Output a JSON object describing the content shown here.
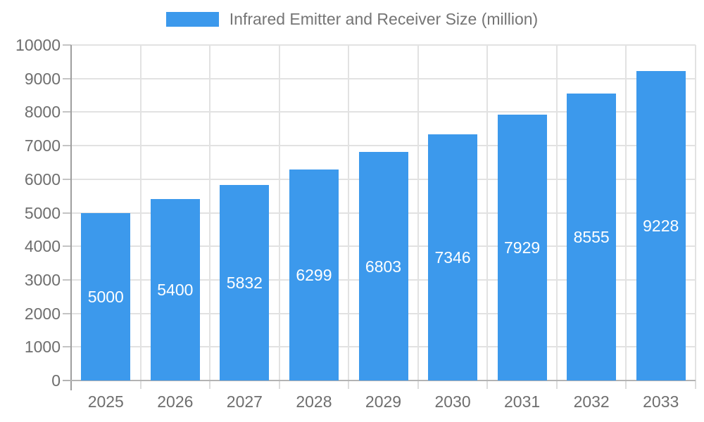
{
  "chart_data": {
    "type": "bar",
    "title": "",
    "xlabel": "",
    "ylabel": "",
    "series_label": "Infrared Emitter and Receiver Size (million)",
    "categories": [
      "2025",
      "2026",
      "2027",
      "2028",
      "2029",
      "2030",
      "2031",
      "2032",
      "2033"
    ],
    "values": [
      5000,
      5400,
      5832,
      6299,
      6803,
      7346,
      7929,
      8555,
      9228
    ],
    "value_labels": [
      "5000",
      "5400",
      "5832",
      "6299",
      "6803",
      "7346",
      "7929",
      "8555",
      "9228"
    ],
    "ylim": [
      0,
      10000
    ],
    "ytick_step": 1000,
    "ytick_labels": [
      "0",
      "1000",
      "2000",
      "3000",
      "4000",
      "5000",
      "6000",
      "7000",
      "8000",
      "9000",
      "10000"
    ],
    "grid": true,
    "legend_position": "top",
    "value_label_position": "inside-center"
  },
  "colors": {
    "bar": "#3C99EC",
    "grid": "#E2E2E2",
    "axis_line": "#9E9E9E",
    "axis_bottom_line": "#B3B3B3",
    "x_tick": "#DCDCDC",
    "y_tick": "#C4C4C4",
    "axis_text": "#6E6E6E",
    "legend_text": "#757575",
    "value_text": "#FFFFFF",
    "background": "#FFFFFF"
  }
}
